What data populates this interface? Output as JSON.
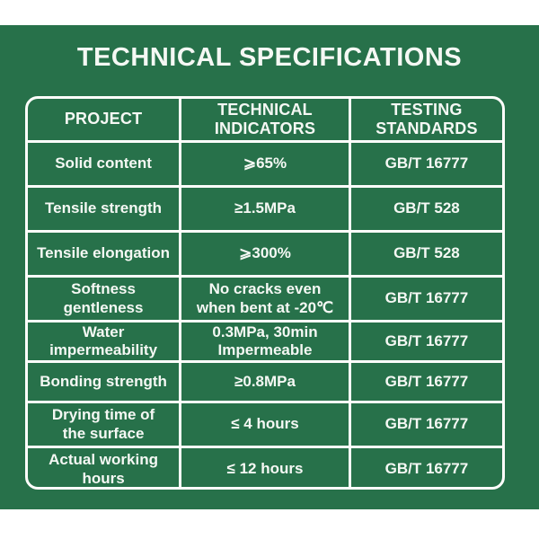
{
  "page": {
    "background_color": "#ffffff",
    "panel_color": "#27714a",
    "grid_line_color": "#fdfdfb",
    "text_color": "#f5f8f4"
  },
  "title": "TECHNICAL SPECIFICATIONS",
  "table": {
    "headers": [
      "PROJECT",
      "TECHNICAL\nINDICATORS",
      "TESTING\nSTANDARDS"
    ],
    "rows": [
      {
        "project": "Solid content",
        "indicator": "⩾65%",
        "standard": "GB/T 16777"
      },
      {
        "project": "Tensile strength",
        "indicator": "≥1.5MPa",
        "standard": "GB/T 528"
      },
      {
        "project": "Tensile elongation",
        "indicator": "⩾300%",
        "standard": "GB/T 528"
      },
      {
        "project": "Softness\ngentleness",
        "indicator": "No cracks even\nwhen bent at -20℃",
        "standard": "GB/T 16777"
      },
      {
        "project": "Water\nimpermeability",
        "indicator": "0.3MPa, 30min\nImpermeable",
        "standard": "GB/T 16777"
      },
      {
        "project": "Bonding strength",
        "indicator": "≥0.8MPa",
        "standard": "GB/T 16777"
      },
      {
        "project": "Drying time of\nthe surface",
        "indicator": "≤ 4 hours",
        "standard": "GB/T 16777"
      },
      {
        "project": "Actual working\nhours",
        "indicator": "≤ 12 hours",
        "standard": "GB/T 16777"
      }
    ]
  }
}
